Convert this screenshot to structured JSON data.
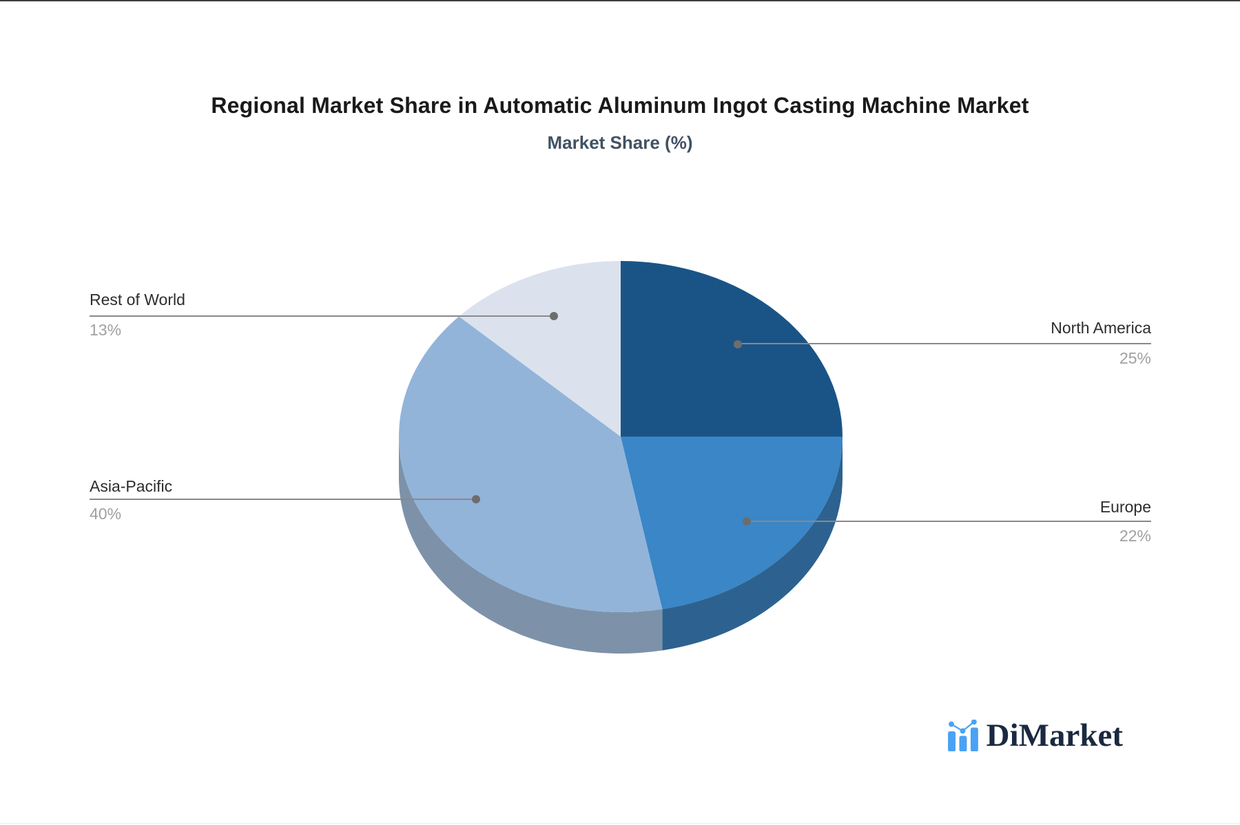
{
  "chart_data": {
    "type": "pie",
    "style": "3d-extruded",
    "title": "Regional Market Share in Automatic Aluminum Ingot Casting Machine Market",
    "subtitle": "Market Share (%)",
    "unit": "%",
    "start_angle": "12-oclock",
    "direction": "clockwise",
    "legend_position": "callout-labels",
    "segments": [
      {
        "label": "North America",
        "value": 25,
        "pct_label": "25%",
        "color": "#1a5486",
        "callout_side": "right"
      },
      {
        "label": "Europe",
        "value": 22,
        "pct_label": "22%",
        "color": "#3a86c7",
        "side_color": "#2d6290",
        "callout_side": "right"
      },
      {
        "label": "Asia-Pacific",
        "value": 40,
        "pct_label": "40%",
        "color": "#92b4d9",
        "side_color": "#7d92a9",
        "callout_side": "left"
      },
      {
        "label": "Rest of World",
        "value": 13,
        "pct_label": "13%",
        "color": "#dbe2ee",
        "callout_side": "left"
      }
    ],
    "colors": {
      "title_text": "#1a1a1a",
      "subtitle_text": "#415263",
      "label_text": "#2d2d2d",
      "pct_text": "#a0a0a0",
      "leader_line": "#898989",
      "leader_dot": "#6d6d6d",
      "background": "#ffffff"
    }
  },
  "footer": {
    "logo_text": "DiMarket",
    "logo_text_color": "#1b2940",
    "logo_icon_color": "#4aa2f5"
  }
}
